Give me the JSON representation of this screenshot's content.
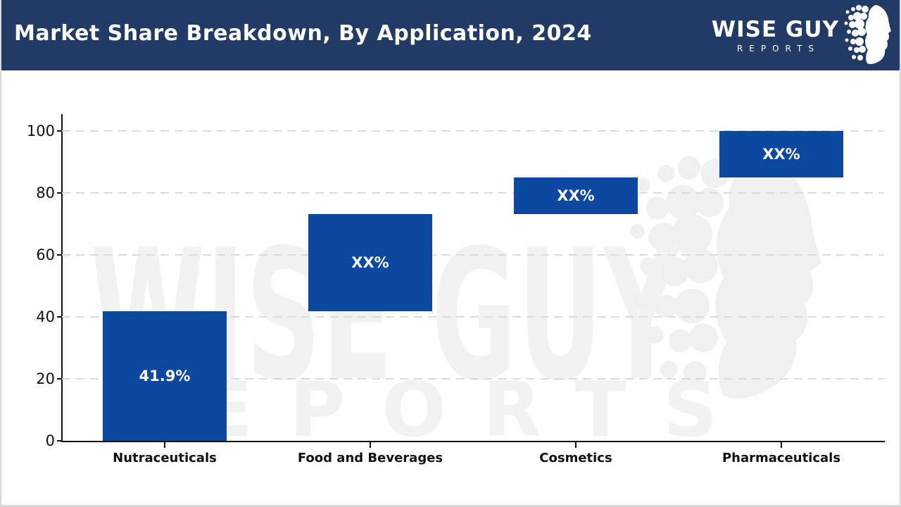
{
  "header": {
    "title": "Market Share Breakdown, By Application, 2024",
    "bg_color": "#223A66",
    "logo": {
      "line1": "WISE GUY",
      "line2": "REPORTS"
    }
  },
  "watermark": {
    "line1": "WISE GUY",
    "line2": "REPORTS"
  },
  "chart_data": {
    "type": "bar",
    "subtype": "waterfall",
    "title": "Market Share Breakdown, By Application, 2024",
    "categories": [
      "Nutraceuticals",
      "Food and Beverages",
      "Cosmetics",
      "Pharmaceuticals"
    ],
    "series": [
      {
        "name": "Market Share",
        "segments": [
          {
            "category": "Nutraceuticals",
            "start": 0,
            "end": 41.9,
            "label": "41.9%"
          },
          {
            "category": "Food and Beverages",
            "start": 41.9,
            "end": 73.2,
            "label": "XX%"
          },
          {
            "category": "Cosmetics",
            "start": 73.2,
            "end": 85.0,
            "label": "XX%"
          },
          {
            "category": "Pharmaceuticals",
            "start": 85.0,
            "end": 100.0,
            "label": "XX%"
          }
        ]
      }
    ],
    "ylim": [
      0,
      100
    ],
    "yticks": [
      0,
      20,
      40,
      60,
      80,
      100
    ],
    "grid": "horizontal-dashed",
    "legend": "none",
    "bar_color": "#0C47A0",
    "bar_label_color": "#ffffff",
    "gridline_color": "#DBDBDB",
    "axis_color": "#111111"
  }
}
